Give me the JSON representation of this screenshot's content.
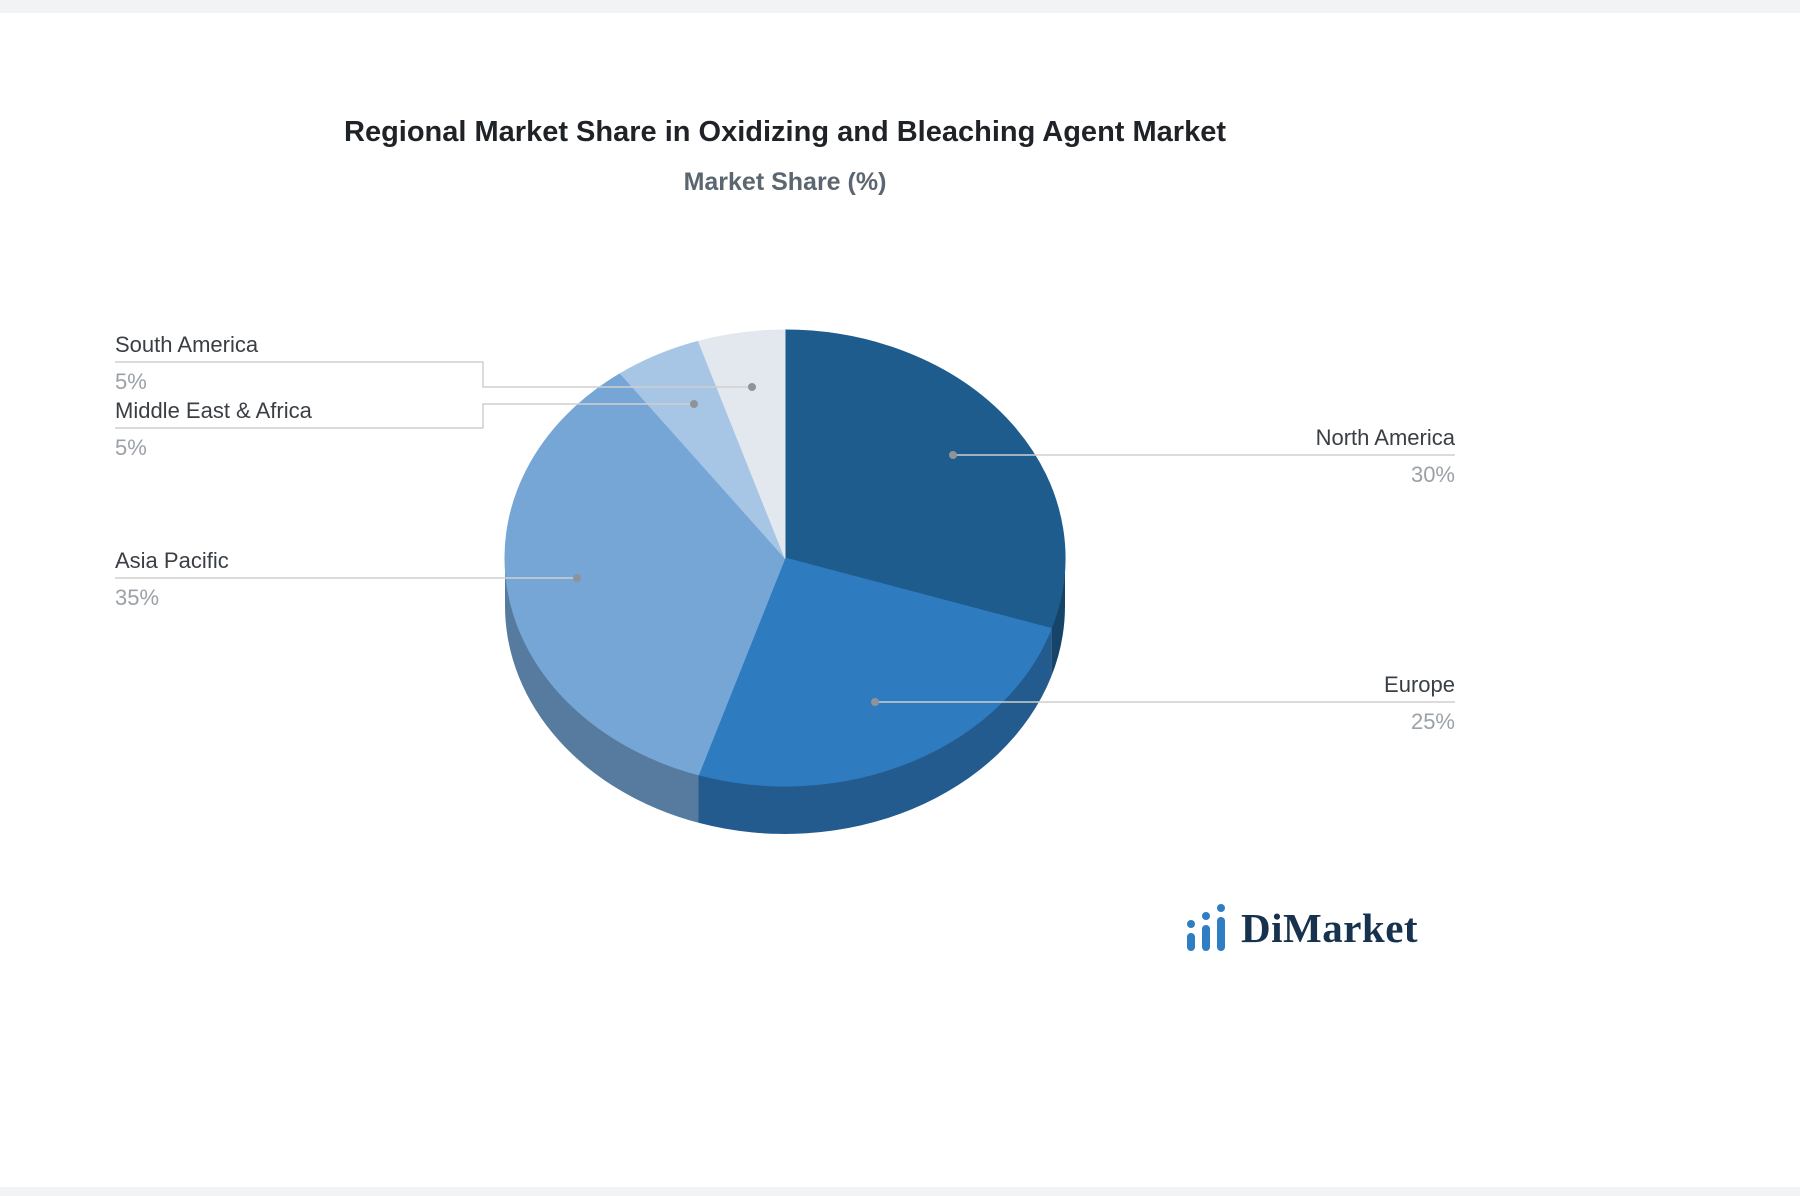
{
  "chart_data": {
    "type": "pie",
    "title": "Regional Market Share in Oxidizing and Bleaching Agent Market",
    "subtitle": "Market Share (%)",
    "unit": "%",
    "effect": "3d",
    "start_angle": "top",
    "direction": "clockwise",
    "callout_line_color": "#cfcfcf",
    "callout_dot_color": "#8f9399",
    "slices": [
      {
        "label": "North America",
        "value": 30,
        "color": "#1e5c8e",
        "callout_side": "right"
      },
      {
        "label": "Europe",
        "value": 25,
        "color": "#2f7bc0",
        "callout_side": "right"
      },
      {
        "label": "Asia Pacific",
        "value": 35,
        "color": "#76a6d6",
        "callout_side": "left"
      },
      {
        "label": "Middle East & Africa",
        "value": 5,
        "color": "#a7c6e5",
        "callout_side": "left"
      },
      {
        "label": "South America",
        "value": 5,
        "color": "#e3e8ee",
        "callout_side": "left"
      }
    ]
  },
  "brand": {
    "name": "DiMarket",
    "icon": "bar-chart-logo-icon",
    "text_color": "#16324e",
    "icon_color": "#2f7dc3"
  }
}
